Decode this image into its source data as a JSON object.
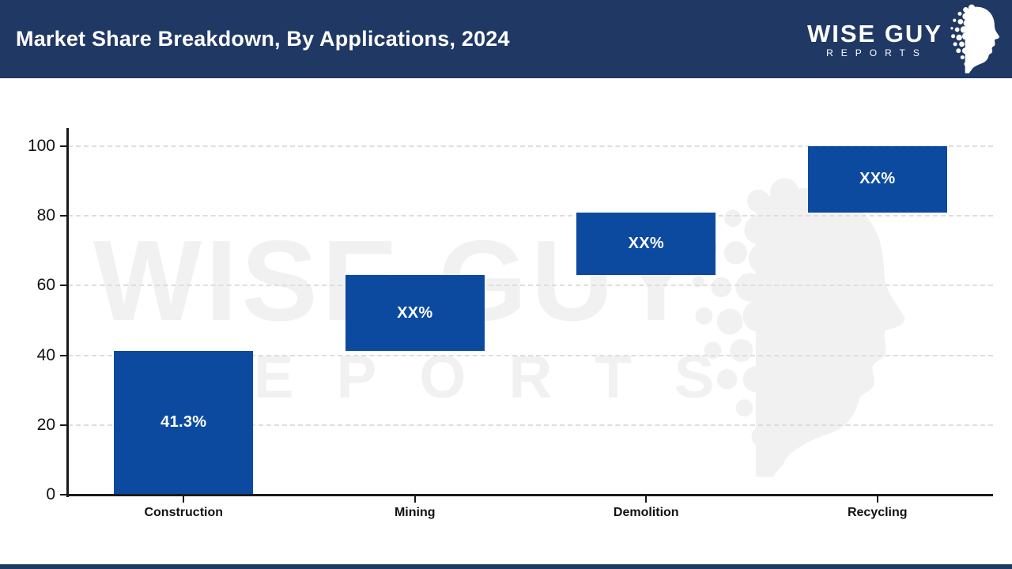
{
  "header": {
    "title": "Market Share Breakdown, By Applications, 2024",
    "logo": {
      "line1": "WISE GUY",
      "line2": "REPORTS"
    }
  },
  "watermark": {
    "line1": "WISE GUY",
    "line2": "REPORTS"
  },
  "colors": {
    "header_bg": "#203864",
    "footer_bg": "#203864",
    "bar": "#0b4a9e",
    "bar_label": "#ffffff",
    "grid": "#dedede",
    "axis": "#1a1a1a",
    "tick_label": "#111111",
    "watermark": "#f1f1f2",
    "logo": "#ffffff"
  },
  "chart_data": {
    "type": "bar",
    "subtype": "waterfall",
    "title": "Market Share Breakdown, By Applications, 2024",
    "categories": [
      "Construction",
      "Mining",
      "Demolition",
      "Recycling"
    ],
    "segments": [
      {
        "category": "Construction",
        "start": 0,
        "end": 41.3,
        "label": "41.3%"
      },
      {
        "category": "Mining",
        "start": 41.3,
        "end": 63,
        "label": "XX%"
      },
      {
        "category": "Demolition",
        "start": 63,
        "end": 81,
        "label": "XX%"
      },
      {
        "category": "Recycling",
        "start": 81,
        "end": 100,
        "label": "XX%"
      }
    ],
    "xlabel": "",
    "ylabel": "",
    "y_ticks": [
      0,
      20,
      40,
      60,
      80,
      100
    ],
    "ylim": [
      0,
      100
    ],
    "grid": "horizontal-dashed",
    "legend": "none"
  }
}
